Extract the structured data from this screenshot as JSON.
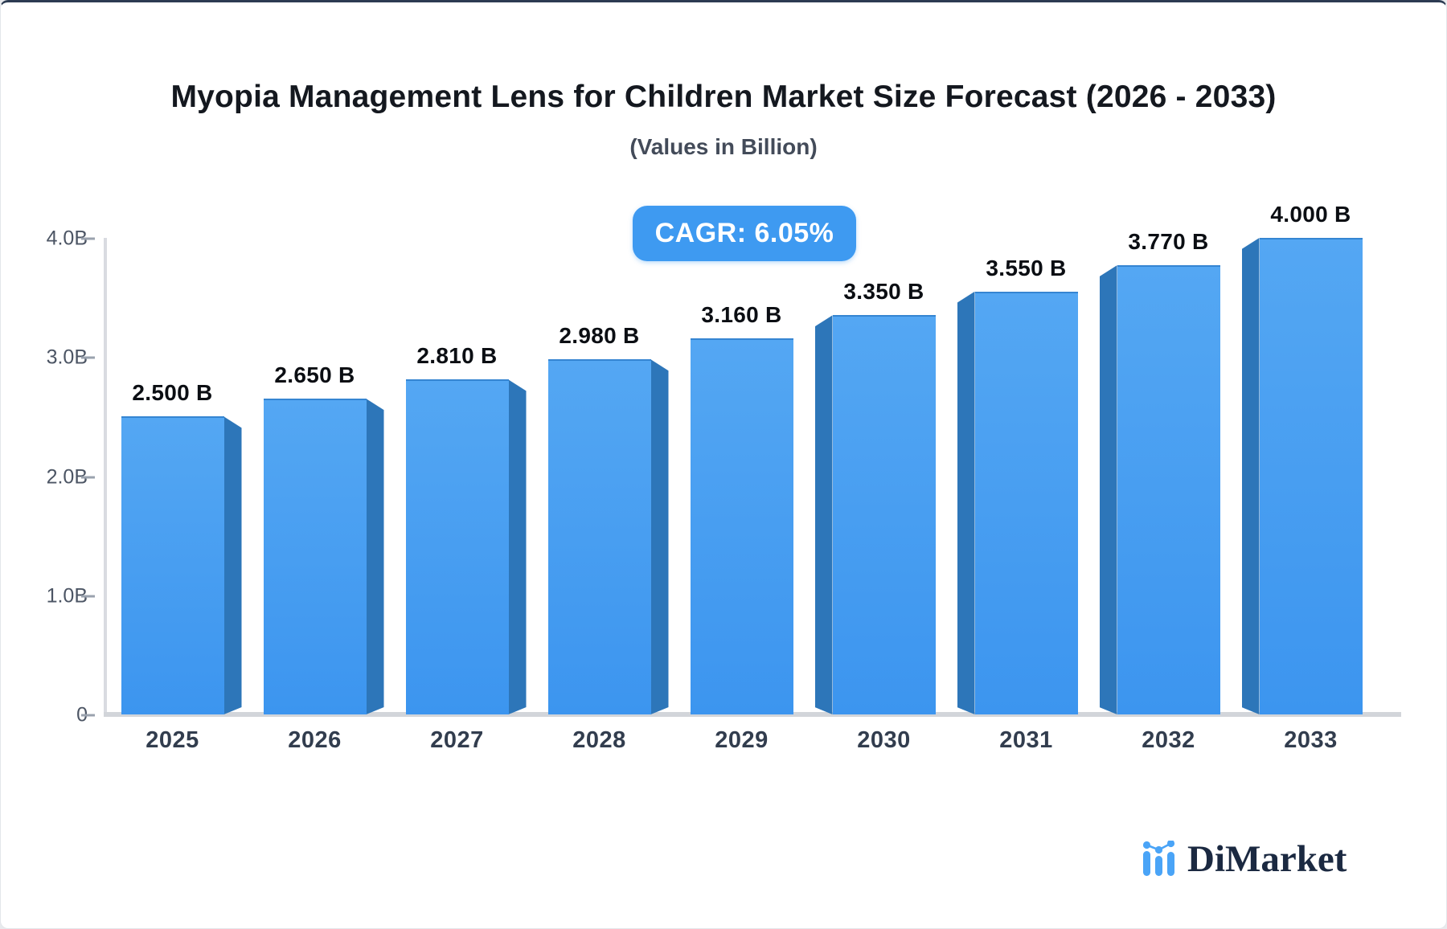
{
  "header": {
    "title": "Myopia Management Lens for Children Market Size Forecast (2026 - 2033)",
    "subtitle": "(Values in Billion)"
  },
  "badge": {
    "label": "CAGR: 6.05%"
  },
  "chart_data": {
    "type": "bar",
    "title": "Myopia Management Lens for Children Market Size Forecast (2026 - 2033)",
    "subtitle": "(Values in Billion)",
    "annotation": "CAGR: 6.05%",
    "categories": [
      "2025",
      "2026",
      "2027",
      "2028",
      "2029",
      "2030",
      "2031",
      "2032",
      "2033"
    ],
    "values": [
      2.5,
      2.65,
      2.81,
      2.98,
      3.16,
      3.35,
      3.55,
      3.77,
      4.0
    ],
    "value_labels": [
      "2.500 B",
      "2.650 B",
      "2.810 B",
      "2.980 B",
      "3.160 B",
      "3.350 B",
      "3.550 B",
      "3.770 B",
      "4.000 B"
    ],
    "ylabel_ticks": [
      "0",
      "1.0B",
      "2.0B",
      "3.0B",
      "4.0B"
    ],
    "ylim": [
      0,
      4
    ],
    "grid": false,
    "legend": "none",
    "unit": "Billion",
    "bar_color": "#3e9af1",
    "bar_side_color": "#2d76b9",
    "accent_color": "#3e9af1"
  },
  "footer": {
    "brand": "DiMarket"
  }
}
